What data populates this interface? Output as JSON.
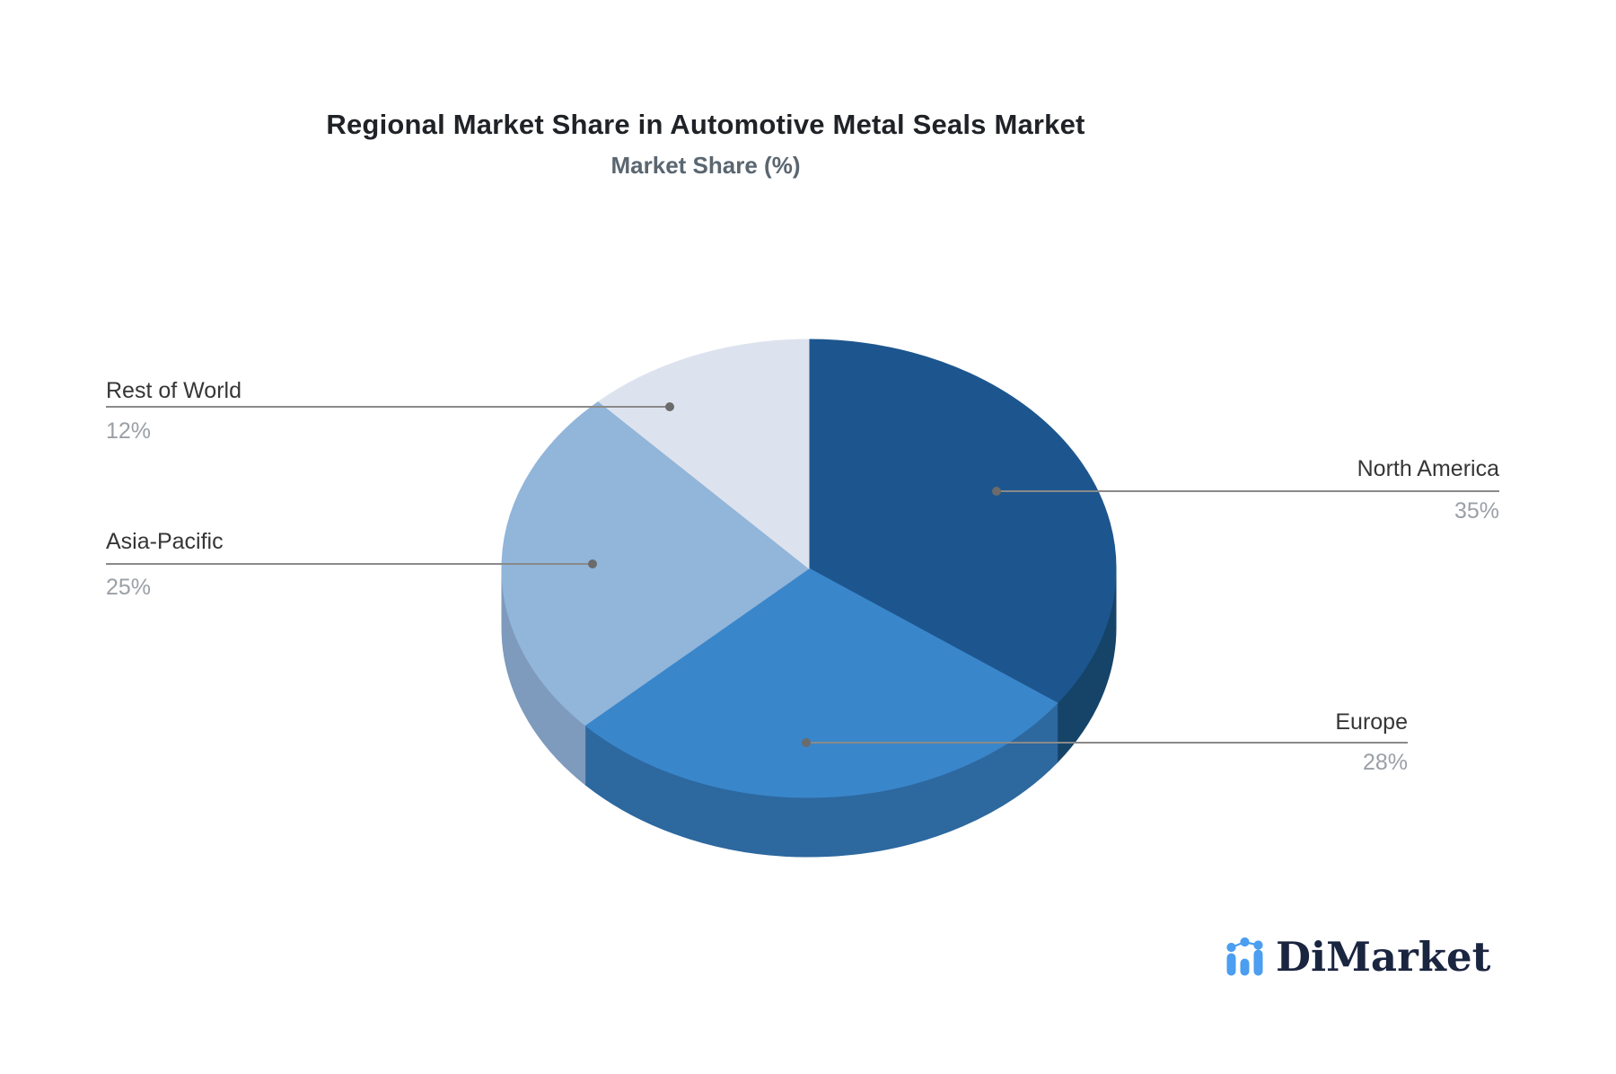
{
  "chart_data": {
    "type": "pie",
    "title": "Regional Market Share in Automotive Metal Seals Market",
    "subtitle": "Market Share (%)",
    "labels": [
      "North America",
      "Europe",
      "Asia-Pacific",
      "Rest of World"
    ],
    "values": [
      35,
      28,
      25,
      12
    ],
    "value_labels": [
      "35%",
      "28%",
      "25%",
      "12%"
    ],
    "colors": [
      "#1d568f",
      "#3a86ca",
      "#92b5da",
      "#dde3ee"
    ],
    "side_colors": [
      "#164469",
      "#2d689f",
      "#7e9abc",
      "#b9c2d4"
    ],
    "start_angle_deg": 0,
    "direction": "clockwise",
    "effect_3d": true,
    "legend": "none",
    "callout_line_color": "#8a8a8a",
    "label_color": "#363636",
    "value_color": "#9aa0a6"
  },
  "logo": {
    "text": "DiMarket",
    "icon": "bar-chart-trend-icon",
    "accent_color": "#4b9ef0",
    "text_color": "#1a2540"
  }
}
